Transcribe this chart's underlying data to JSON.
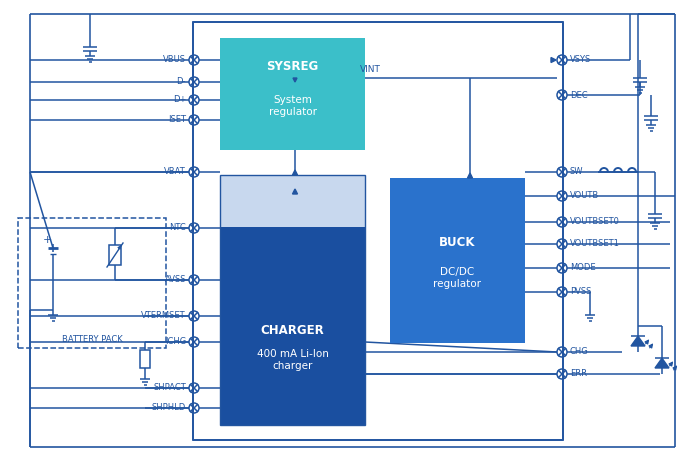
{
  "bg_color": "#ffffff",
  "lc": "#2255a0",
  "teal": "#3bbfc9",
  "dblue": "#1a4fa0",
  "mblue": "#2a72cc",
  "charger_top_bg": "#c8d8ee",
  "sysreg_label1": "SYSREG",
  "sysreg_label2": "System\nregulator",
  "charger_label1": "CHARGER",
  "charger_label2": "400 mA Li-Ion\ncharger",
  "buck_label1": "BUCK",
  "buck_label2": "DC/DC\nregulator",
  "battery_label": "BATTERY PACK",
  "vint_label": "VINT",
  "left_pins": [
    "VBUS",
    "D-",
    "D+",
    "ISET",
    "VBAT",
    "NTC",
    "AVSS",
    "VTERMSET",
    "ICHG",
    "SHPACT",
    "SHPHLD"
  ],
  "right_pins": [
    "VSYS",
    "DEC",
    "SW",
    "VOUTB",
    "VOUTBSET0",
    "VOUTBSET1",
    "MODE",
    "PVSS",
    "CHG",
    "ERR"
  ]
}
